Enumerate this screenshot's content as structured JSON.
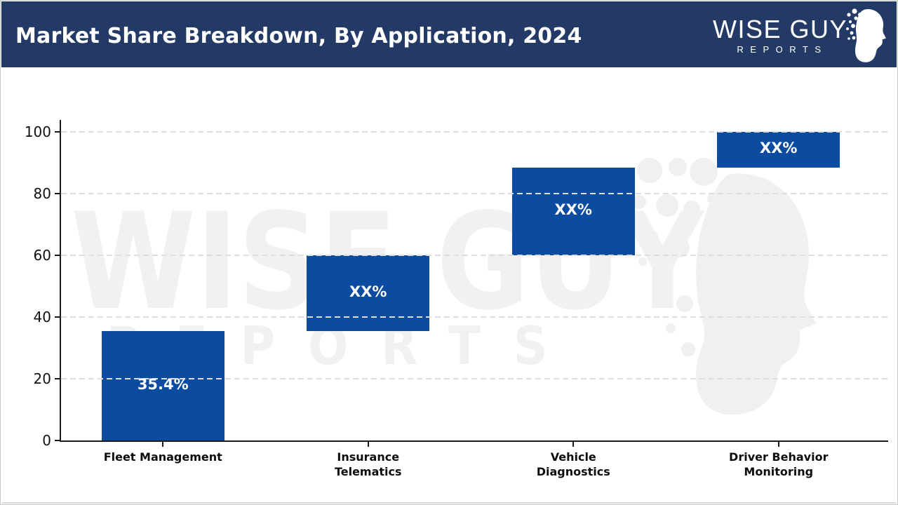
{
  "header": {
    "title": "Market Share Breakdown, By Application, 2024",
    "bg_color": "#233a67",
    "logo": {
      "line1": "WISE GUY",
      "line2": "REPORTS"
    }
  },
  "watermark": {
    "line1": "WISE GUY",
    "line2": "REPORTS"
  },
  "chart_data": {
    "type": "bar",
    "variant": "floating-stacked-percent",
    "title": "Market Share Breakdown, By Application, 2024",
    "categories": [
      "Fleet Management",
      "Insurance Telematics",
      "Vehicle Diagnostics",
      "Driver Behavior Monitoring"
    ],
    "category_label_lines": [
      [
        "Fleet Management"
      ],
      [
        "Insurance",
        "Telematics"
      ],
      [
        "Vehicle",
        "Diagnostics"
      ],
      [
        "Driver Behavior",
        "Monitoring"
      ]
    ],
    "segments": [
      {
        "category": "Fleet Management",
        "start": 0,
        "end": 35.4,
        "label": "35.4%"
      },
      {
        "category": "Insurance Telematics",
        "start": 35.4,
        "end": 60,
        "label": "XX%"
      },
      {
        "category": "Vehicle Diagnostics",
        "start": 60,
        "end": 88.5,
        "label": "XX%"
      },
      {
        "category": "Driver Behavior Monitoring",
        "start": 88.5,
        "end": 100,
        "label": "XX%"
      }
    ],
    "ylim": [
      0,
      100
    ],
    "yticks": [
      0,
      20,
      40,
      60,
      80,
      100
    ],
    "xlabel": "",
    "ylabel": "",
    "bar_color": "#0b4ba0",
    "grid": {
      "style": "dashed",
      "color": "#dedede",
      "axis": "y"
    },
    "legend": "none"
  }
}
